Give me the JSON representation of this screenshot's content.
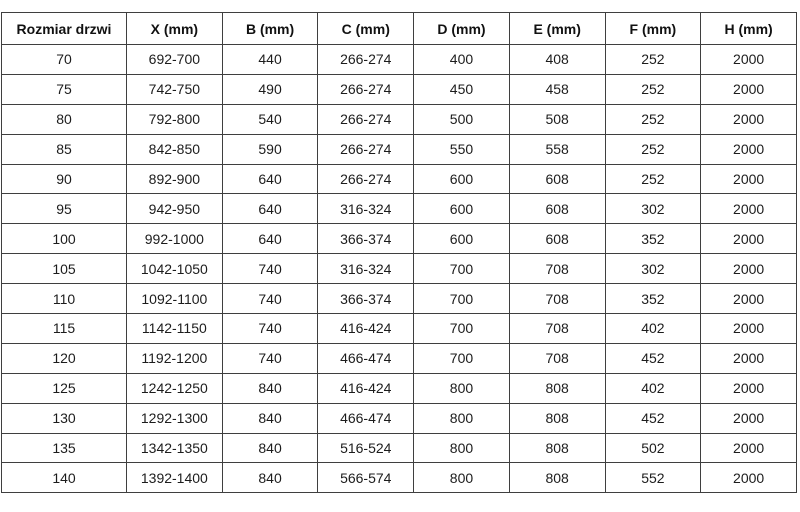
{
  "page": {
    "background": "#ffffff",
    "text_color": "#1c1c1c",
    "border_color": "#3f3f3f"
  },
  "table": {
    "title": "door-size-table",
    "columns": [
      "Rozmiar drzwi",
      "X (mm)",
      "B (mm)",
      "C (mm)",
      "D (mm)",
      "E (mm)",
      "F (mm)",
      "H (mm)"
    ],
    "rows": [
      [
        "70",
        "692-700",
        "440",
        "266-274",
        "400",
        "408",
        "252",
        "2000"
      ],
      [
        "75",
        "742-750",
        "490",
        "266-274",
        "450",
        "458",
        "252",
        "2000"
      ],
      [
        "80",
        "792-800",
        "540",
        "266-274",
        "500",
        "508",
        "252",
        "2000"
      ],
      [
        "85",
        "842-850",
        "590",
        "266-274",
        "550",
        "558",
        "252",
        "2000"
      ],
      [
        "90",
        "892-900",
        "640",
        "266-274",
        "600",
        "608",
        "252",
        "2000"
      ],
      [
        "95",
        "942-950",
        "640",
        "316-324",
        "600",
        "608",
        "302",
        "2000"
      ],
      [
        "100",
        "992-1000",
        "640",
        "366-374",
        "600",
        "608",
        "352",
        "2000"
      ],
      [
        "105",
        "1042-1050",
        "740",
        "316-324",
        "700",
        "708",
        "302",
        "2000"
      ],
      [
        "110",
        "1092-1100",
        "740",
        "366-374",
        "700",
        "708",
        "352",
        "2000"
      ],
      [
        "115",
        "1142-1150",
        "740",
        "416-424",
        "700",
        "708",
        "402",
        "2000"
      ],
      [
        "120",
        "1192-1200",
        "740",
        "466-474",
        "700",
        "708",
        "452",
        "2000"
      ],
      [
        "125",
        "1242-1250",
        "840",
        "416-424",
        "800",
        "808",
        "402",
        "2000"
      ],
      [
        "130",
        "1292-1300",
        "840",
        "466-474",
        "800",
        "808",
        "452",
        "2000"
      ],
      [
        "135",
        "1342-1350",
        "840",
        "516-524",
        "800",
        "808",
        "502",
        "2000"
      ],
      [
        "140",
        "1392-1400",
        "840",
        "566-574",
        "800",
        "808",
        "552",
        "2000"
      ]
    ]
  }
}
